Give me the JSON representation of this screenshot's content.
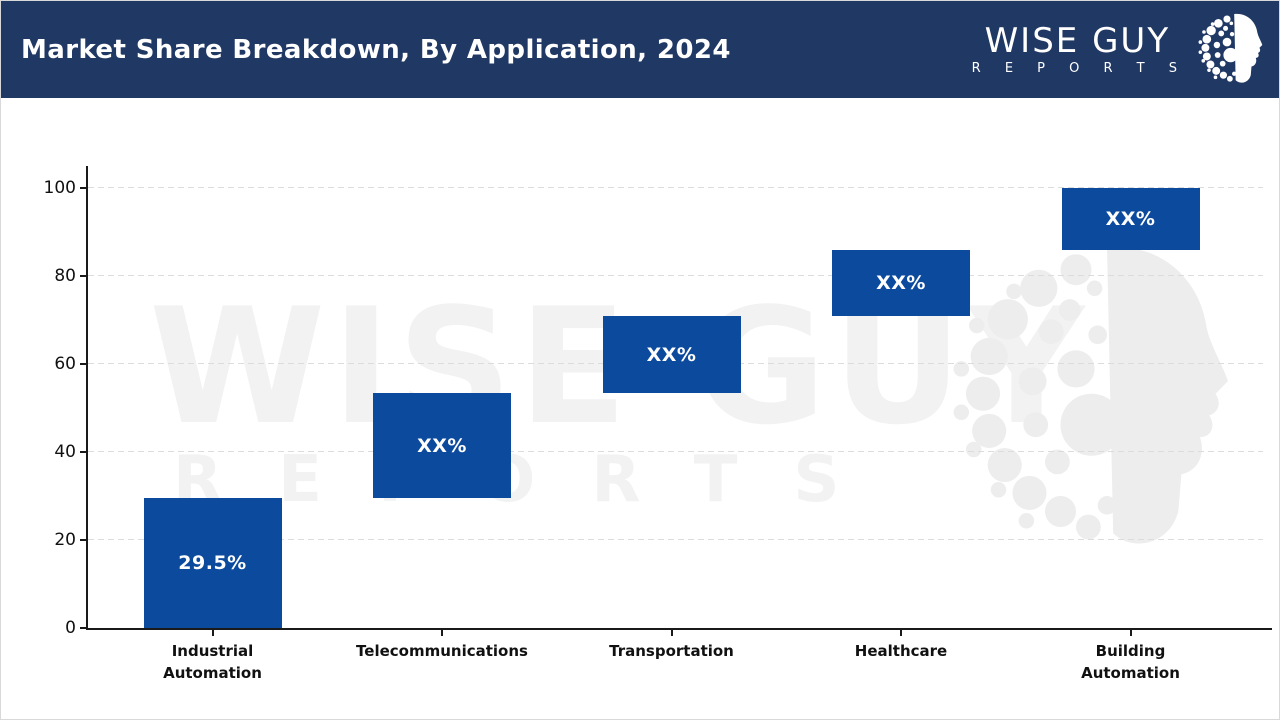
{
  "header": {
    "title": "Market Share Breakdown, By Application, 2024",
    "logo": {
      "line1": "WISE GUY",
      "line2": "R E P O R T S"
    }
  },
  "watermark": {
    "line1": "WISE GUY",
    "line2": "REPORTS"
  },
  "chart_data": {
    "type": "bar",
    "subtype": "waterfall",
    "title": "Market Share Breakdown, By Application, 2024",
    "categories": [
      "Industrial\nAutomation",
      "Telecommunications",
      "Transportation",
      "Healthcare",
      "Building\nAutomation"
    ],
    "segments": [
      {
        "category": "Industrial Automation",
        "start": 0,
        "end": 29.5,
        "label": "29.5%"
      },
      {
        "category": "Telecommunications",
        "start": 29.5,
        "end": 53.3,
        "label": "XX%"
      },
      {
        "category": "Transportation",
        "start": 53.3,
        "end": 71.0,
        "label": "XX%"
      },
      {
        "category": "Healthcare",
        "start": 71.0,
        "end": 85.8,
        "label": "XX%"
      },
      {
        "category": "Building Automation",
        "start": 85.8,
        "end": 100,
        "label": "XX%"
      }
    ],
    "yticks": [
      0,
      20,
      40,
      60,
      80,
      100
    ],
    "ylim": [
      0,
      105
    ],
    "xlabel": "",
    "ylabel": "",
    "grid": "horizontal-dashed",
    "legend": "none"
  },
  "colors": {
    "header_bg": "#203864",
    "bar": "#0c4a9e",
    "bar_label": "#ffffff",
    "grid": "#dcdcdc",
    "axis": "#1a1a1a",
    "watermark": "#f2f2f2",
    "page_border": "#d9d9d9"
  }
}
